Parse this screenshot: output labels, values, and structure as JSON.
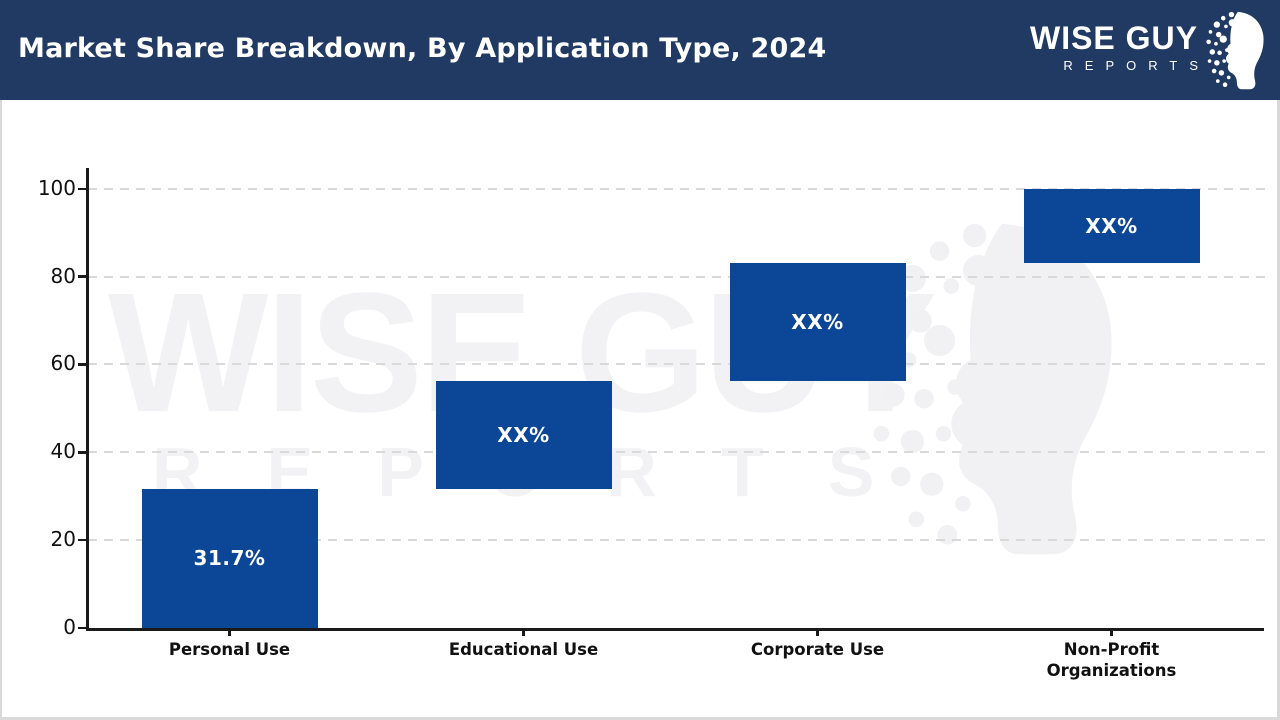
{
  "header": {
    "title": "Market Share Breakdown, By Application Type, 2024",
    "brand": {
      "line1": "WISE GUY",
      "line2": "REPORTS"
    }
  },
  "watermark": {
    "line1": "WISE GUY",
    "line2": "REPORTS"
  },
  "colors": {
    "header_bg": "#203a63",
    "bar": "#0b4697",
    "bar_label": "#ffffff",
    "grid": "#d9d9d9",
    "axis": "#1a1a1a",
    "watermark": "#f2f2f5"
  },
  "chart_data": {
    "type": "bar",
    "subtype": "waterfall",
    "title": "Market Share Breakdown, By Application Type, 2024",
    "categories": [
      "Personal Use",
      "Educational Use",
      "Corporate Use",
      "Non-Profit Organizations"
    ],
    "segments": [
      {
        "category": "Personal Use",
        "start": 0,
        "end": 31.7,
        "value": 31.7,
        "label": "31.7%"
      },
      {
        "category": "Educational Use",
        "start": 31.7,
        "end": 56.2,
        "value": 24.5,
        "label": "XX%"
      },
      {
        "category": "Corporate Use",
        "start": 56.2,
        "end": 83.1,
        "value": 26.9,
        "label": "XX%"
      },
      {
        "category": "Non-Profit Organizations",
        "start": 83.1,
        "end": 100,
        "value": 16.9,
        "label": "XX%"
      }
    ],
    "y_ticks": [
      0,
      20,
      40,
      60,
      80,
      100
    ],
    "ylim": [
      0,
      104.5
    ],
    "xlabel": "",
    "ylabel": "",
    "grid": "horizontal-dashed",
    "legend": "none",
    "bar_color": "#0b4697",
    "data_labels_inside_bars": true
  }
}
